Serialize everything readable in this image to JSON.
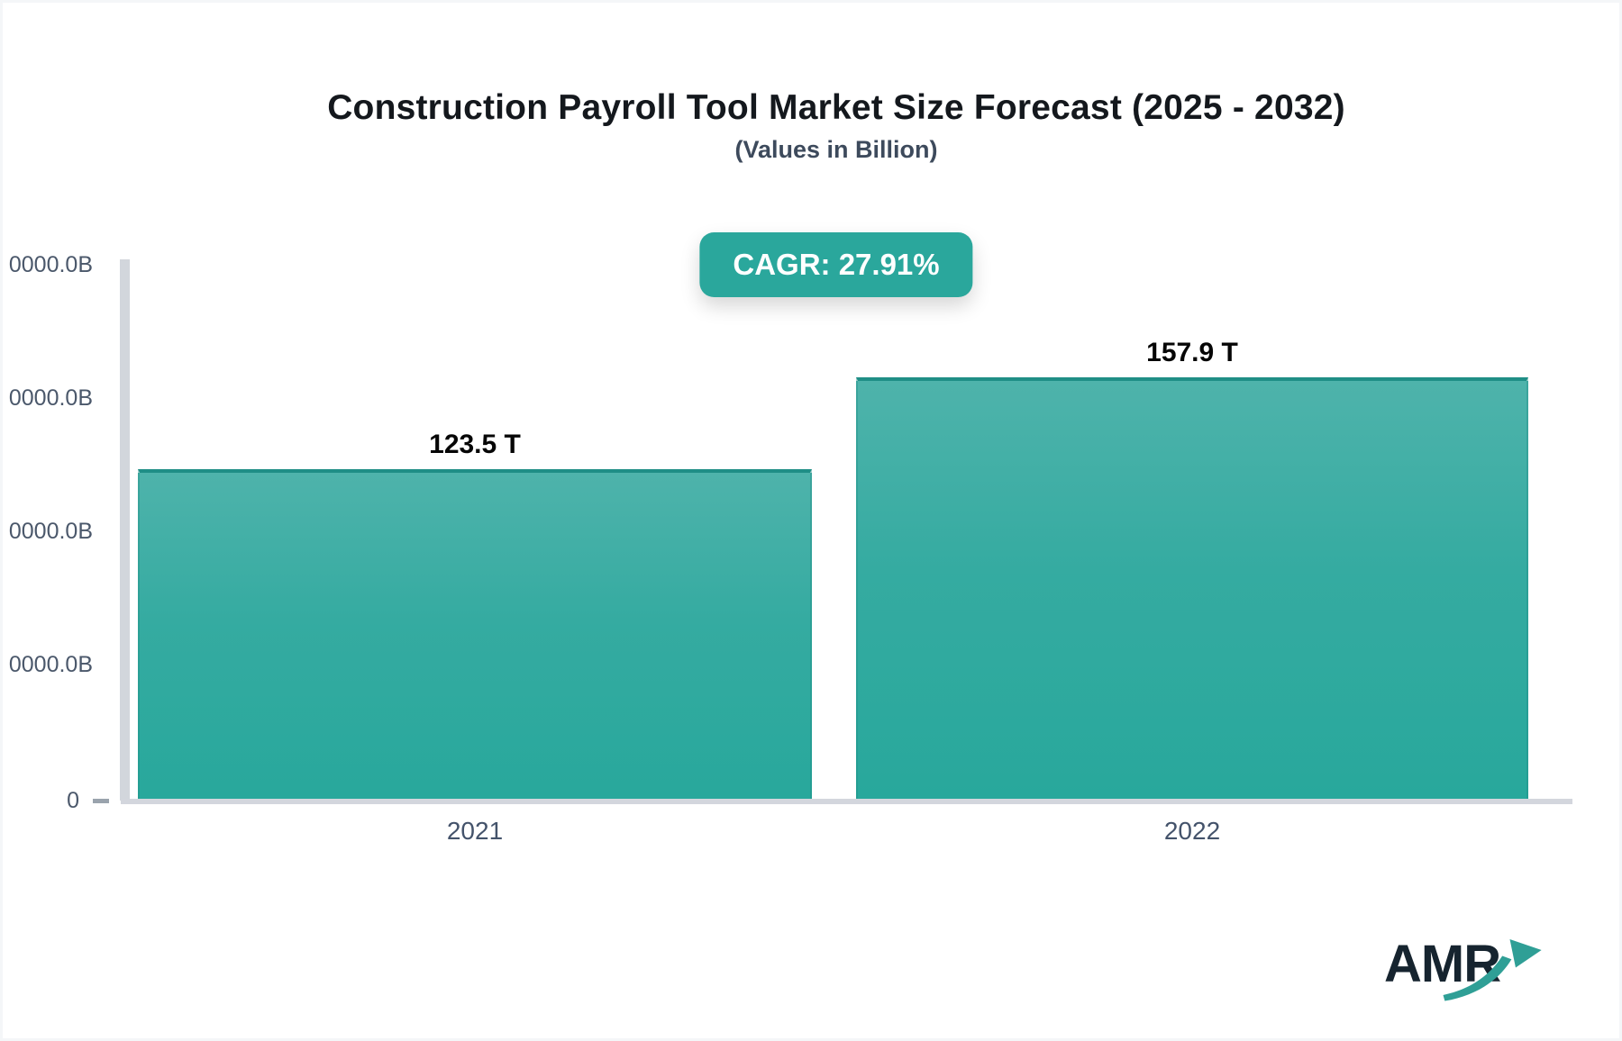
{
  "header": {
    "title": "Construction Payroll Tool Market Size Forecast (2025 - 2032)",
    "subtitle": "(Values in Billion)",
    "cagr_badge": {
      "label": "CAGR: 27.91%",
      "bg_color": "#2aa79c",
      "text_color": "#ffffff"
    }
  },
  "chart_data": {
    "type": "bar",
    "title": "Construction Payroll Tool Market Size Forecast (2025 - 2032)",
    "subtitle": "(Values in Billion)",
    "categories": [
      "2021",
      "2022"
    ],
    "values_T": [
      123.5,
      157.9
    ],
    "bar_labels": [
      "123.5 T",
      "157.9 T"
    ],
    "cagr_pct": 27.91,
    "ylim_T": [
      0,
      200
    ],
    "ytick_step_T": 50,
    "ytick_labels_visible": [
      "0000.0B",
      "0000.0B",
      "0000.0B",
      "0000.0B",
      "0"
    ],
    "grid": false,
    "legend": "none",
    "bar_color_top": "#4eb3ab",
    "bar_color_bottom": "#28a89c",
    "bar_border_color": "#1f8e86",
    "axis_line_color": "#d2d6dc"
  },
  "logo": {
    "text": "AMR",
    "arrow_color": "#2f9f96",
    "text_color": "#16242f"
  }
}
